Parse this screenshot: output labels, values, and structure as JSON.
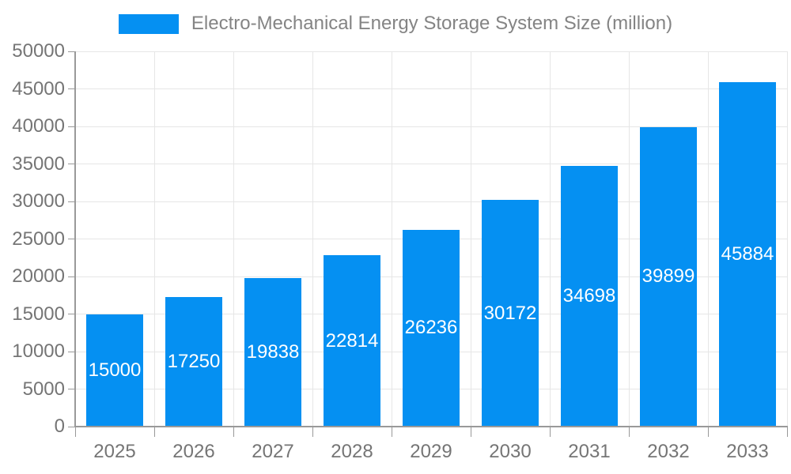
{
  "legend": {
    "label": "Electro-Mechanical Energy Storage System Size (million)"
  },
  "colors": {
    "bar": "#0590f2",
    "axis_line": "#999999",
    "grid_line": "#e6e6e6",
    "tick_text": "#757575",
    "legend_text": "#848484",
    "value_label_text": "#ffffff",
    "background": "#ffffff"
  },
  "chart_data": {
    "type": "bar",
    "title": "Electro-Mechanical Energy Storage System Size (million)",
    "series": [
      {
        "name": "Electro-Mechanical Energy Storage System Size (million)",
        "values": [
          15000,
          17250,
          19838,
          22814,
          26236,
          30172,
          34698,
          39899,
          45884
        ]
      }
    ],
    "categories": [
      "2025",
      "2026",
      "2027",
      "2028",
      "2029",
      "2030",
      "2031",
      "2032",
      "2033"
    ],
    "value_labels": [
      "15000",
      "17250",
      "19838",
      "22814",
      "26236",
      "30172",
      "34698",
      "39899",
      "45884"
    ],
    "xlabel": "",
    "ylabel": "",
    "ylim": [
      0,
      50000
    ],
    "y_ticks": [
      0,
      5000,
      10000,
      15000,
      20000,
      25000,
      30000,
      35000,
      40000,
      45000,
      50000
    ],
    "grid": true,
    "legend_position": "top",
    "value_label_position": "inside-center"
  }
}
